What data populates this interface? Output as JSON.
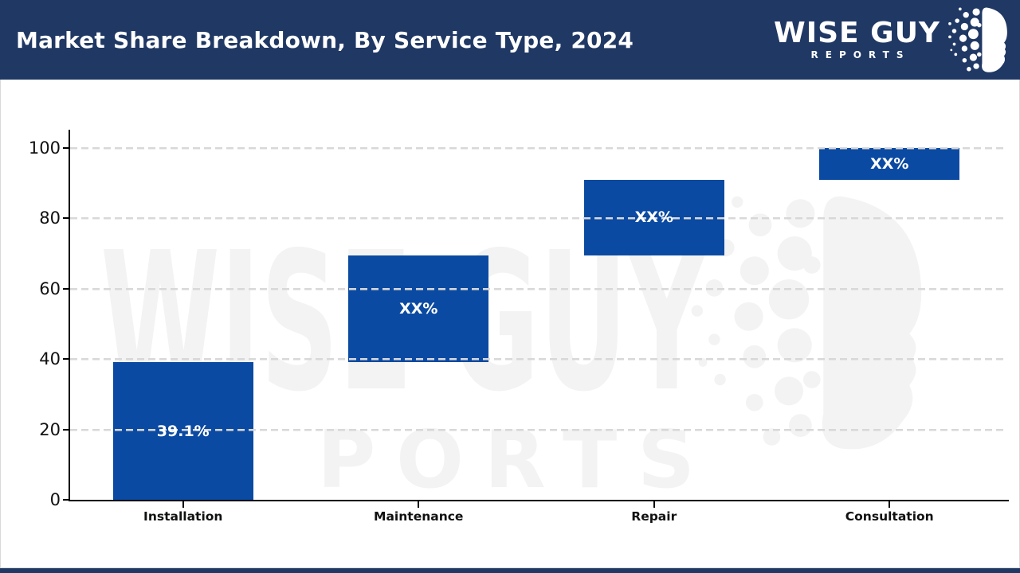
{
  "header": {
    "title": "Market Share Breakdown, By Service Type, 2024"
  },
  "logo": {
    "name": "WISE GUY",
    "subtitle": "REPORTS"
  },
  "watermark": {
    "line1": "WISE GUY",
    "line2": "PORTS"
  },
  "colors": {
    "header_bg": "#203864",
    "footer_bg": "#203864",
    "bar": "#0b4aa2",
    "bar_label": "#ffffff",
    "grid": "#d8d8d8",
    "axis": "#000000",
    "watermark": "#f3f3f3"
  },
  "chart_data": {
    "type": "bar",
    "subtype": "waterfall",
    "title": "Market Share Breakdown, By Service Type, 2024",
    "categories": [
      "Installation",
      "Maintenance",
      "Repair",
      "Consultation"
    ],
    "segments": [
      {
        "category": "Installation",
        "start": 0,
        "end": 39.1,
        "label": "39.1%"
      },
      {
        "category": "Maintenance",
        "start": 39.1,
        "end": 69.5,
        "label": "XX%"
      },
      {
        "category": "Repair",
        "start": 69.5,
        "end": 91,
        "label": "XX%"
      },
      {
        "category": "Consultation",
        "start": 91,
        "end": 100,
        "label": "XX%"
      }
    ],
    "xlabel": "",
    "ylabel": "",
    "yticks": [
      0,
      20,
      40,
      60,
      80,
      100
    ],
    "ylim": [
      0,
      105
    ],
    "grid": "horizontal-dashed",
    "legend": "none",
    "bar_color": "#0b4aa2",
    "label_color": "#ffffff"
  }
}
